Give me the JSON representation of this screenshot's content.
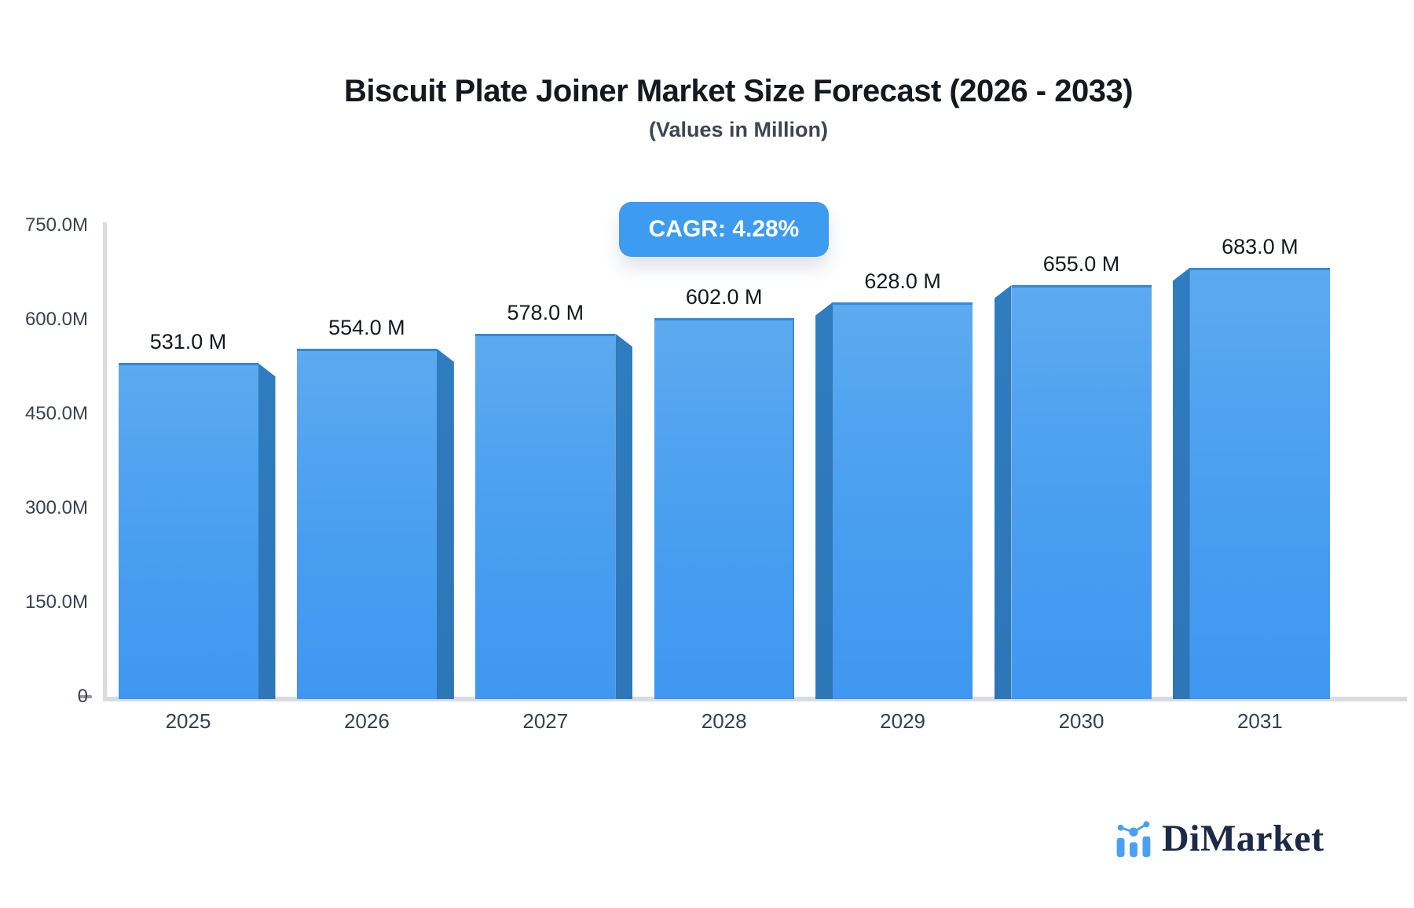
{
  "header": {
    "title": "Biscuit Plate Joiner Market Size Forecast (2026 - 2033)",
    "subtitle": "(Values in Million)"
  },
  "badge": {
    "label": "CAGR: 4.28%"
  },
  "brand": {
    "name": "DiMarket"
  },
  "chart_data": {
    "type": "bar",
    "title": "Biscuit Plate Joiner Market Size Forecast (2026 - 2033)",
    "subtitle": "(Values in Million)",
    "categories": [
      "2025",
      "2026",
      "2027",
      "2028",
      "2029",
      "2030",
      "2031"
    ],
    "values": [
      531,
      554,
      578,
      602,
      628,
      655,
      683
    ],
    "bar_labels": [
      "531.0 M",
      "554.0 M",
      "578.0 M",
      "602.0 M",
      "628.0 M",
      "655.0 M",
      "683.0 M"
    ],
    "unit": "Million",
    "xlabel": "",
    "ylabel": "",
    "ylim": [
      0,
      750
    ],
    "yticks": [
      {
        "label": "750.0M",
        "value": 750
      },
      {
        "label": "600.0M",
        "value": 600
      },
      {
        "label": "450.0M",
        "value": 450
      },
      {
        "label": "300.0M",
        "value": 300
      },
      {
        "label": "150.0M",
        "value": 150
      },
      {
        "label": "0",
        "value": 0
      }
    ],
    "grid": false,
    "legend": false,
    "style": "3d-extruded-bars"
  },
  "colors": {
    "badge_bg": "#3d9bf0",
    "bar_face_top": "#5caaf0",
    "bar_face_bottom": "#3f97f1",
    "bar_side_face": "#2d76b8",
    "bar_top_edge": "#3389d9",
    "axis_line": "#d8dbdf",
    "title_text": "#15181e",
    "brand_navy": "#1c2a47",
    "brand_blue": "#4aa0f5"
  }
}
